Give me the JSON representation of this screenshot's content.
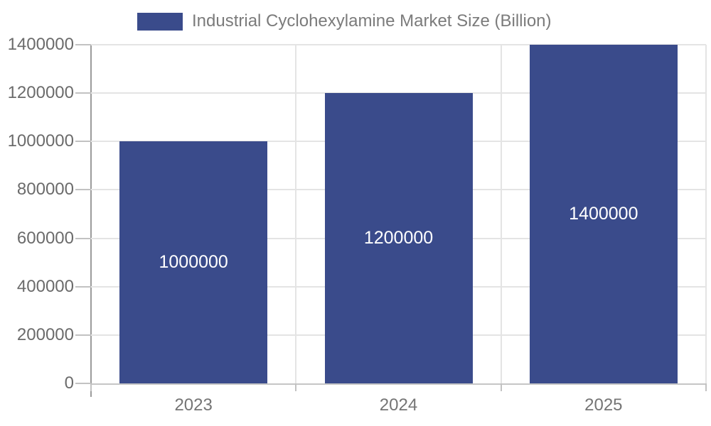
{
  "colors": {
    "background": "#FFFFFF",
    "bar": "#3A4B8B",
    "bar_label": "#FFFFFF",
    "grid": "#E4E4E4",
    "axis_y": "#9B9B9B",
    "axis_x": "#C6C6C6",
    "tick": "#C2C2C2",
    "tick_label": "#6B6B6B",
    "xtick_label": "#757575",
    "legend_text": "#7B7B7B"
  },
  "legend": {
    "label": "Industrial Cyclohexylamine Market Size (Billion)"
  },
  "chart_data": {
    "type": "bar",
    "title": "Industrial Cyclohexylamine Market Size (Billion)",
    "categories": [
      "2023",
      "2024",
      "2025"
    ],
    "values": [
      1000000,
      1200000,
      1400000
    ],
    "bar_labels": [
      "1000000",
      "1200000",
      "1400000"
    ],
    "xlabel": "",
    "ylabel": "",
    "ylim": [
      0,
      1400000
    ],
    "ytick_interval": 200000,
    "yticks": [
      0,
      200000,
      400000,
      600000,
      800000,
      1000000,
      1200000,
      1400000
    ],
    "ytick_labels": [
      "0",
      "200000",
      "400000",
      "600000",
      "800000",
      "1000000",
      "1200000",
      "1400000"
    ],
    "grid": true,
    "legend_position": "top",
    "bar_label_position": "center"
  }
}
